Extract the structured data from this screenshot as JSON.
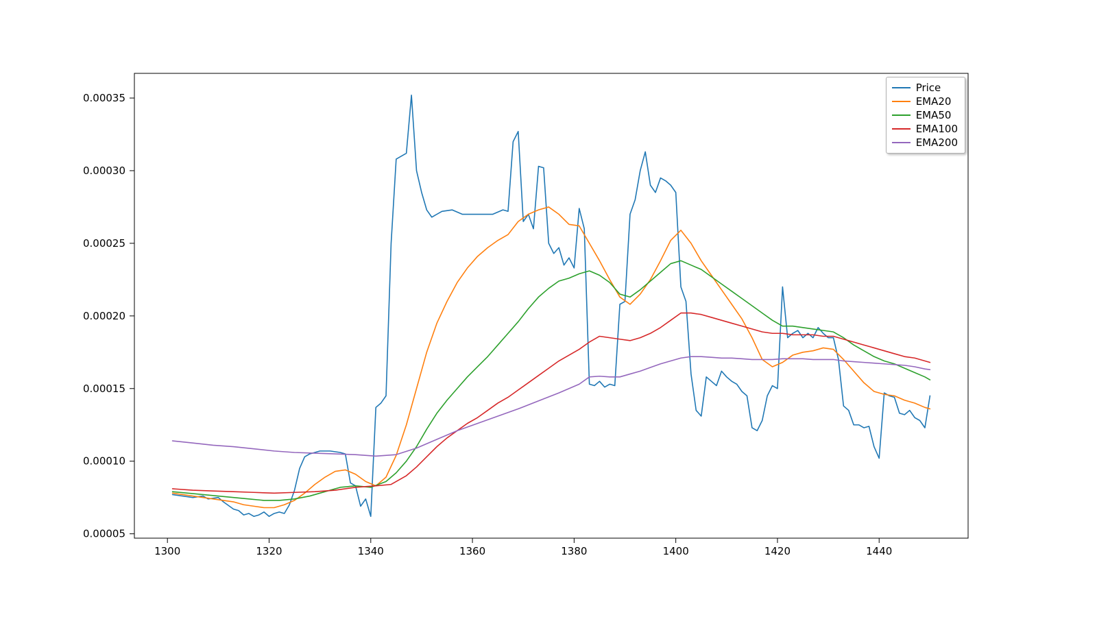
{
  "chart_data": {
    "type": "line",
    "title": "",
    "xlabel": "",
    "ylabel": "",
    "grid": false,
    "y_scale": 1e-05,
    "xlim": [
      1293.5,
      1457.5
    ],
    "ylim": [
      4.7,
      36.7
    ],
    "x_ticks": [
      1300,
      1320,
      1340,
      1360,
      1380,
      1400,
      1420,
      1440
    ],
    "x_tick_labels": [
      "1300",
      "1320",
      "1340",
      "1360",
      "1380",
      "1400",
      "1420",
      "1440"
    ],
    "y_ticks": [
      5,
      10,
      15,
      20,
      25,
      30,
      35
    ],
    "y_tick_labels": [
      "0.00005",
      "0.00010",
      "0.00015",
      "0.00020",
      "0.00025",
      "0.00030",
      "0.00035"
    ],
    "legend": {
      "position": "upper right",
      "entries": [
        "Price",
        "EMA20",
        "EMA50",
        "EMA100",
        "EMA200"
      ]
    },
    "series": [
      {
        "name": "Price",
        "color": "#1f77b4",
        "x": [
          1301,
          1303,
          1305,
          1307,
          1308,
          1310,
          1311,
          1313,
          1314,
          1315,
          1316,
          1317,
          1318,
          1319,
          1320,
          1321,
          1322,
          1323,
          1324,
          1325,
          1326,
          1327,
          1328,
          1330,
          1332,
          1334,
          1335,
          1336,
          1337,
          1338,
          1339,
          1340,
          1341,
          1342,
          1343,
          1344,
          1345,
          1346,
          1347,
          1348,
          1349,
          1350,
          1351,
          1352,
          1354,
          1356,
          1358,
          1360,
          1362,
          1364,
          1366,
          1367,
          1368,
          1369,
          1370,
          1371,
          1372,
          1373,
          1374,
          1375,
          1376,
          1377,
          1378,
          1379,
          1380,
          1381,
          1382,
          1383,
          1384,
          1385,
          1386,
          1387,
          1388,
          1389,
          1390,
          1391,
          1392,
          1393,
          1394,
          1395,
          1396,
          1397,
          1398,
          1399,
          1400,
          1401,
          1402,
          1403,
          1404,
          1405,
          1406,
          1407,
          1408,
          1409,
          1410,
          1411,
          1412,
          1413,
          1414,
          1415,
          1416,
          1417,
          1418,
          1419,
          1420,
          1421,
          1422,
          1423,
          1424,
          1425,
          1426,
          1427,
          1428,
          1429,
          1430,
          1431,
          1432,
          1433,
          1434,
          1435,
          1436,
          1437,
          1438,
          1439,
          1440,
          1441,
          1442,
          1443,
          1444,
          1445,
          1446,
          1447,
          1448,
          1449,
          1450
        ],
        "y": [
          7.7,
          7.6,
          7.5,
          7.6,
          7.4,
          7.5,
          7.2,
          6.7,
          6.6,
          6.3,
          6.4,
          6.2,
          6.3,
          6.5,
          6.2,
          6.4,
          6.5,
          6.4,
          7.0,
          8.0,
          9.5,
          10.3,
          10.5,
          10.7,
          10.7,
          10.6,
          10.5,
          8.5,
          8.3,
          6.9,
          7.4,
          6.2,
          13.7,
          14.0,
          14.5,
          25.0,
          30.8,
          31.0,
          31.2,
          35.2,
          30.0,
          28.5,
          27.3,
          26.8,
          27.2,
          27.3,
          27.0,
          27.0,
          27.0,
          27.0,
          27.3,
          27.2,
          32.0,
          32.7,
          26.5,
          27.0,
          26.0,
          30.3,
          30.2,
          25.0,
          24.3,
          24.7,
          23.5,
          24.0,
          23.3,
          27.4,
          26.0,
          15.3,
          15.2,
          15.5,
          15.1,
          15.3,
          15.2,
          20.8,
          21.0,
          27.0,
          28.0,
          30.0,
          31.3,
          29.0,
          28.5,
          29.5,
          29.3,
          29.0,
          28.5,
          22.0,
          21.0,
          16.0,
          13.5,
          13.1,
          15.8,
          15.5,
          15.2,
          16.2,
          15.8,
          15.5,
          15.3,
          14.8,
          14.5,
          12.3,
          12.1,
          12.8,
          14.5,
          15.2,
          15.0,
          22.0,
          18.5,
          18.8,
          19.0,
          18.5,
          18.8,
          18.5,
          19.2,
          18.8,
          18.5,
          18.5,
          17.0,
          13.8,
          13.5,
          12.5,
          12.5,
          12.3,
          12.4,
          11.0,
          10.2,
          14.7,
          14.5,
          14.4,
          13.3,
          13.2,
          13.5,
          13.0,
          12.8,
          12.3,
          14.5
        ]
      },
      {
        "name": "EMA20",
        "color": "#ff7f0e",
        "x": [
          1301,
          1303,
          1305,
          1307,
          1309,
          1311,
          1313,
          1315,
          1317,
          1319,
          1321,
          1323,
          1325,
          1327,
          1329,
          1331,
          1333,
          1335,
          1337,
          1339,
          1341,
          1343,
          1345,
          1347,
          1349,
          1351,
          1353,
          1355,
          1357,
          1359,
          1361,
          1363,
          1365,
          1367,
          1369,
          1371,
          1373,
          1375,
          1377,
          1379,
          1381,
          1383,
          1385,
          1387,
          1389,
          1391,
          1393,
          1395,
          1397,
          1399,
          1401,
          1403,
          1405,
          1407,
          1409,
          1411,
          1413,
          1415,
          1417,
          1419,
          1421,
          1423,
          1425,
          1427,
          1429,
          1431,
          1433,
          1435,
          1437,
          1439,
          1441,
          1443,
          1445,
          1447,
          1449,
          1450
        ],
        "y": [
          7.8,
          7.7,
          7.6,
          7.5,
          7.4,
          7.3,
          7.2,
          7.0,
          6.9,
          6.8,
          6.8,
          7.0,
          7.3,
          7.8,
          8.4,
          8.9,
          9.3,
          9.4,
          9.1,
          8.6,
          8.3,
          8.9,
          10.4,
          12.5,
          15.0,
          17.5,
          19.5,
          21.0,
          22.3,
          23.3,
          24.1,
          24.7,
          25.2,
          25.6,
          26.5,
          27.0,
          27.3,
          27.5,
          27.0,
          26.3,
          26.2,
          25.0,
          23.8,
          22.5,
          21.3,
          20.8,
          21.5,
          22.5,
          23.8,
          25.2,
          25.9,
          25.0,
          23.8,
          22.8,
          21.8,
          20.8,
          19.8,
          18.5,
          17.0,
          16.5,
          16.8,
          17.3,
          17.5,
          17.6,
          17.8,
          17.7,
          17.0,
          16.2,
          15.4,
          14.8,
          14.6,
          14.5,
          14.2,
          14.0,
          13.7,
          13.6
        ]
      },
      {
        "name": "EMA50",
        "color": "#2ca02c",
        "x": [
          1301,
          1304,
          1307,
          1310,
          1313,
          1316,
          1319,
          1322,
          1325,
          1328,
          1331,
          1334,
          1337,
          1340,
          1343,
          1345,
          1347,
          1349,
          1351,
          1353,
          1355,
          1357,
          1359,
          1361,
          1363,
          1365,
          1367,
          1369,
          1371,
          1373,
          1375,
          1377,
          1379,
          1381,
          1383,
          1385,
          1387,
          1389,
          1391,
          1393,
          1395,
          1397,
          1399,
          1401,
          1403,
          1405,
          1407,
          1409,
          1411,
          1413,
          1415,
          1417,
          1419,
          1421,
          1423,
          1425,
          1427,
          1429,
          1431,
          1433,
          1435,
          1437,
          1439,
          1441,
          1443,
          1445,
          1447,
          1449,
          1450
        ],
        "y": [
          7.9,
          7.8,
          7.7,
          7.6,
          7.5,
          7.4,
          7.3,
          7.3,
          7.4,
          7.6,
          7.9,
          8.2,
          8.3,
          8.2,
          8.6,
          9.2,
          10.0,
          11.0,
          12.2,
          13.3,
          14.2,
          15.0,
          15.8,
          16.5,
          17.2,
          18.0,
          18.8,
          19.6,
          20.5,
          21.3,
          21.9,
          22.4,
          22.6,
          22.9,
          23.1,
          22.8,
          22.3,
          21.5,
          21.3,
          21.8,
          22.4,
          23.0,
          23.6,
          23.8,
          23.5,
          23.2,
          22.7,
          22.2,
          21.7,
          21.2,
          20.7,
          20.2,
          19.7,
          19.3,
          19.3,
          19.2,
          19.1,
          19.0,
          18.9,
          18.5,
          18.0,
          17.6,
          17.2,
          16.9,
          16.7,
          16.4,
          16.1,
          15.8,
          15.6
        ]
      },
      {
        "name": "EMA100",
        "color": "#d62728",
        "x": [
          1301,
          1305,
          1309,
          1313,
          1317,
          1321,
          1325,
          1329,
          1333,
          1337,
          1341,
          1344,
          1347,
          1349,
          1351,
          1353,
          1355,
          1357,
          1359,
          1361,
          1363,
          1365,
          1367,
          1369,
          1371,
          1373,
          1375,
          1377,
          1379,
          1381,
          1383,
          1385,
          1387,
          1389,
          1391,
          1393,
          1395,
          1397,
          1399,
          1401,
          1403,
          1405,
          1407,
          1409,
          1411,
          1413,
          1415,
          1417,
          1419,
          1421,
          1423,
          1425,
          1427,
          1429,
          1431,
          1433,
          1435,
          1437,
          1439,
          1441,
          1443,
          1445,
          1447,
          1449,
          1450
        ],
        "y": [
          8.1,
          8.0,
          7.95,
          7.9,
          7.85,
          7.8,
          7.85,
          7.9,
          8.0,
          8.2,
          8.3,
          8.4,
          9.0,
          9.6,
          10.3,
          11.0,
          11.6,
          12.1,
          12.6,
          13.0,
          13.5,
          14.0,
          14.4,
          14.9,
          15.4,
          15.9,
          16.4,
          16.9,
          17.3,
          17.7,
          18.2,
          18.6,
          18.5,
          18.4,
          18.3,
          18.5,
          18.8,
          19.2,
          19.7,
          20.2,
          20.2,
          20.1,
          19.9,
          19.7,
          19.5,
          19.3,
          19.1,
          18.9,
          18.8,
          18.8,
          18.7,
          18.7,
          18.7,
          18.6,
          18.6,
          18.4,
          18.2,
          18.0,
          17.8,
          17.6,
          17.4,
          17.2,
          17.1,
          16.9,
          16.8
        ]
      },
      {
        "name": "EMA200",
        "color": "#9467bd",
        "x": [
          1301,
          1305,
          1309,
          1313,
          1317,
          1321,
          1325,
          1329,
          1333,
          1337,
          1341,
          1345,
          1349,
          1353,
          1357,
          1361,
          1365,
          1369,
          1373,
          1377,
          1381,
          1383,
          1385,
          1387,
          1389,
          1391,
          1393,
          1395,
          1397,
          1399,
          1401,
          1403,
          1405,
          1407,
          1409,
          1411,
          1413,
          1415,
          1417,
          1419,
          1421,
          1423,
          1425,
          1427,
          1429,
          1431,
          1433,
          1435,
          1437,
          1439,
          1441,
          1443,
          1445,
          1447,
          1449,
          1450
        ],
        "y": [
          11.4,
          11.25,
          11.1,
          11.0,
          10.85,
          10.7,
          10.6,
          10.55,
          10.5,
          10.45,
          10.35,
          10.45,
          10.9,
          11.5,
          12.1,
          12.6,
          13.1,
          13.6,
          14.15,
          14.7,
          15.3,
          15.8,
          15.85,
          15.8,
          15.8,
          16.0,
          16.2,
          16.45,
          16.7,
          16.9,
          17.1,
          17.2,
          17.2,
          17.15,
          17.1,
          17.1,
          17.05,
          17.0,
          17.0,
          17.0,
          17.05,
          17.05,
          17.05,
          17.0,
          17.0,
          17.0,
          16.9,
          16.85,
          16.8,
          16.75,
          16.7,
          16.65,
          16.6,
          16.5,
          16.35,
          16.3
        ]
      }
    ]
  }
}
